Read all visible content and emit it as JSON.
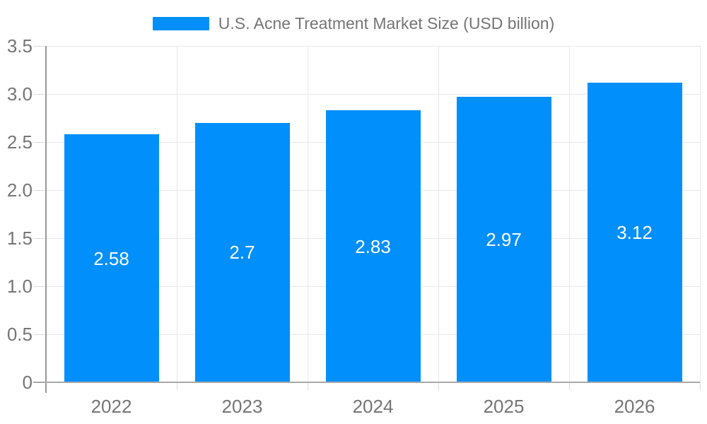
{
  "legend": {
    "label": "U.S. Acne Treatment Market Size (USD billion)"
  },
  "chart_data": {
    "type": "bar",
    "title": "U.S. Acne Treatment Market Size (USD billion)",
    "categories": [
      "2022",
      "2023",
      "2024",
      "2025",
      "2026"
    ],
    "values": [
      2.58,
      2.7,
      2.83,
      2.97,
      3.12
    ],
    "value_labels": [
      "2.58",
      "2.7",
      "2.83",
      "2.97",
      "3.12"
    ],
    "xlabel": "",
    "ylabel": "",
    "ylim": [
      0,
      3.5
    ],
    "yticks": [
      0,
      0.5,
      1,
      1.5,
      2,
      2.5,
      3,
      3.5
    ],
    "ytick_labels": [
      "0",
      "0.5",
      "1.0",
      "1.5",
      "2.0",
      "2.5",
      "3.0",
      "3.5"
    ],
    "grid": true,
    "legend_position": "top",
    "legend_entries": [
      "U.S. Acne Treatment Market Size (USD billion)"
    ],
    "value_label_position": "middle"
  },
  "colors": {
    "bar": "#008FFB",
    "axis_text": "#757575",
    "value_label_text": "#ffffff",
    "grid": "#e8e8e8",
    "tick": "#dcdcdc",
    "y_axis_line": "#999999",
    "baseline": "#a9a9a9",
    "background": "#ffffff"
  }
}
